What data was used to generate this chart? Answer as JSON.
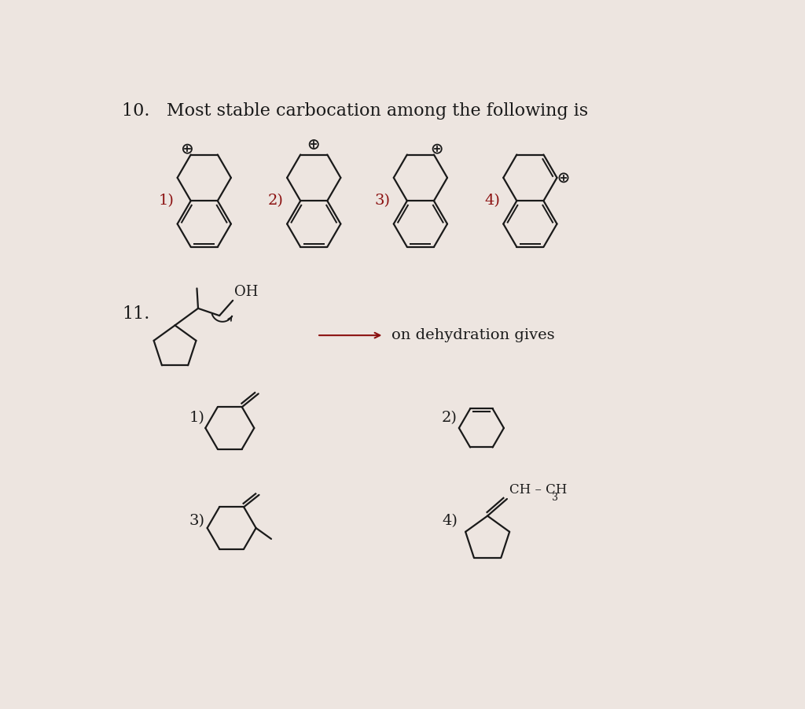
{
  "bg_color": "#ede5e0",
  "line_color": "#1a1a1a",
  "red_color": "#8b1010",
  "title_q10": "10.   Most stable carbocation among the following is",
  "title_q11_num": "11.",
  "text_on_dehyd": "on dehydration gives",
  "label_OH": "OH",
  "label_CH_CH3": "CH – CH",
  "label_3": "3",
  "figsize": [
    10.24,
    9.01
  ],
  "dpi": 100,
  "q10_labels": [
    "1)",
    "2)",
    "3)",
    "4)"
  ],
  "q11_labels": [
    "1)",
    "2)",
    "3)",
    "4)"
  ]
}
